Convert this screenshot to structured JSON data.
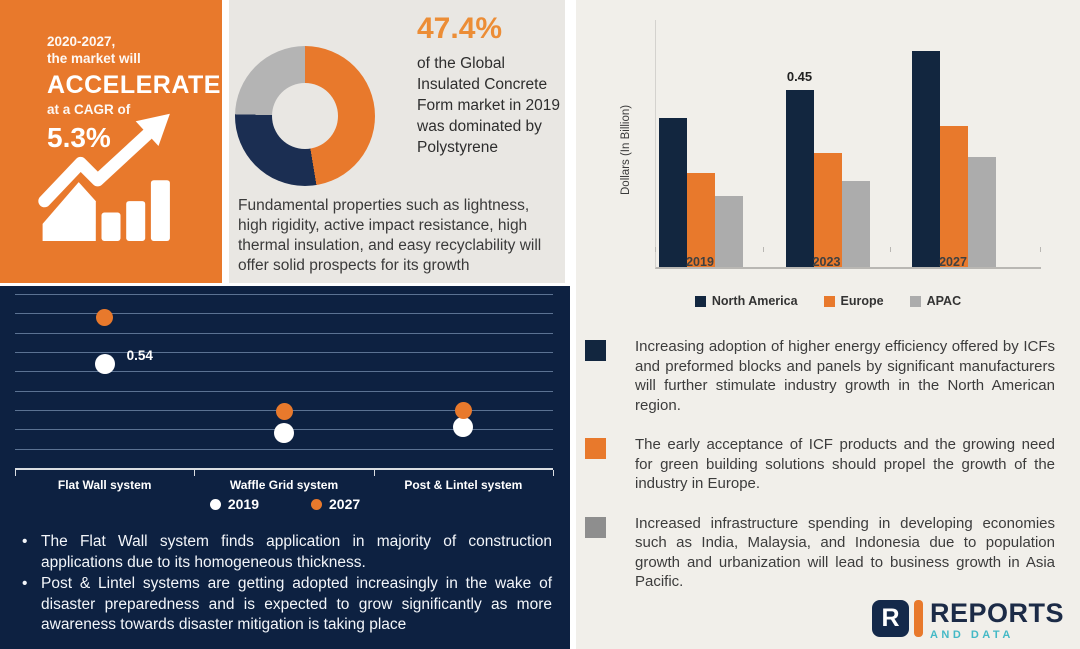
{
  "accelerate_block": {
    "period": "2020-2027,",
    "lead": "the market will",
    "emphasis": "ACCELERATE",
    "cagr_lead": "at a CAGR of",
    "cagr": "5.3%"
  },
  "polystyrene_section": {
    "value": "47.4%",
    "description": "of the Global Insulated Concrete Form market in 2019 was dominated by Polystyrene",
    "note": "Fundamental properties such as lightness, high rigidity, active impact resistance, high thermal insulation, and easy recyclability will offer solid prospects for its growth"
  },
  "left_bullets": [
    {
      "text": "The Flat Wall system finds application in majority of construction applications due to its homogeneous thickness."
    },
    {
      "text": "Post & Lintel systems are getting adopted increasingly in the wake of disaster preparedness and is expected to grow significantly as more awareness towards disaster mitigation is taking place"
    }
  ],
  "right_bullets": [
    {
      "color": "#12263f",
      "text": "Increasing adoption of higher energy efficiency offered by ICFs and preformed blocks and panels by significant manufacturers will further stimulate industry growth in the North American region."
    },
    {
      "color": "#e8792c",
      "text": "The early acceptance of ICF products and the growing need for green building solutions should propel the growth of the industry in Europe."
    },
    {
      "color": "#8e8e8e",
      "text": "Increased infrastructure spending in developing economies such as India, Malaysia, and Indonesia due to population growth and urbanization will lead to business growth in Asia Pacific."
    }
  ],
  "logo": {
    "mark_letter": "R",
    "title": "REPORTS",
    "tagline": "AND DATA"
  },
  "colors": {
    "orange": "#e8792c",
    "navy": "#12263f",
    "navy_panel": "#0d2141",
    "gray_block": "#e9e7e3",
    "right_panel": "#f1efea",
    "series_gray": "#acacac",
    "teal": "#44b9c6",
    "accent_value": "#ec8d36"
  },
  "chart_data": [
    {
      "type": "pie",
      "donut": true,
      "title": "Material share of Global Insulated Concrete Form market, 2019",
      "segments": [
        {
          "label": "Polystyrene",
          "value": 47.4,
          "color": "#e8792c"
        },
        {
          "label": "",
          "value": 28.0,
          "color": "#1b2e52"
        },
        {
          "label": "",
          "value": 24.6,
          "color": "#b4b4b4"
        }
      ]
    },
    {
      "type": "bar",
      "title": "",
      "ylabel": "Dollars (In Billion)",
      "xlabel": "",
      "categories": [
        "2019",
        "2023",
        "2027"
      ],
      "series": [
        {
          "name": "North America",
          "color": "#12263f",
          "values": [
            0.38,
            0.45,
            0.55
          ]
        },
        {
          "name": "Europe",
          "color": "#e8792c",
          "values": [
            0.24,
            0.29,
            0.36
          ]
        },
        {
          "name": "APAC",
          "color": "#acacac",
          "values": [
            0.18,
            0.22,
            0.28
          ]
        }
      ],
      "data_labels": [
        {
          "series": "North America",
          "category": "2023",
          "text": "0.45"
        }
      ],
      "ylim": [
        0,
        0.6
      ],
      "grid": false,
      "legend_position": "bottom"
    },
    {
      "type": "scatter",
      "title": "",
      "categories": [
        "Flat Wall system",
        "Waffle Grid system",
        "Post & Lintel system"
      ],
      "series": [
        {
          "name": "2019",
          "color": "#ffffff",
          "values": [
            0.54,
            0.18,
            0.21
          ]
        },
        {
          "name": "2027",
          "color": "#e8792c",
          "values": [
            0.78,
            0.29,
            0.3
          ]
        }
      ],
      "annotations": [
        {
          "series": "2019",
          "category": "Flat Wall system",
          "text": "0.54"
        }
      ],
      "ylim": [
        0,
        0.9
      ],
      "gridline_step": 0.1,
      "grid": true,
      "legend_position": "bottom"
    }
  ]
}
